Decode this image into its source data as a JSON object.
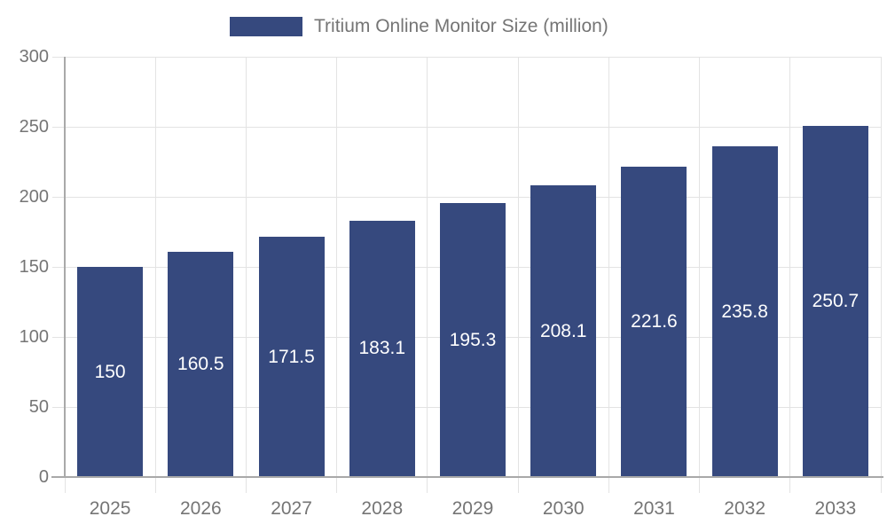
{
  "legend": {
    "label": "Tritium Online Monitor Size (million)"
  },
  "colors": {
    "bar": "#36497E",
    "grid": "#e3e3e3",
    "axis": "#a9a9a9",
    "tick_label": "#757575",
    "value_label": "#ffffff",
    "legend_label": "#757575"
  },
  "chart_data": {
    "type": "bar",
    "title": "Tritium Online Monitor Size (million)",
    "categories": [
      "2025",
      "2026",
      "2027",
      "2028",
      "2029",
      "2030",
      "2031",
      "2032",
      "2033"
    ],
    "series": [
      {
        "name": "Tritium Online Monitor Size (million)",
        "values": [
          150,
          160.5,
          171.5,
          183.1,
          195.3,
          208.1,
          221.6,
          235.8,
          250.7
        ]
      }
    ],
    "value_labels": [
      "150",
      "160.5",
      "171.5",
      "183.1",
      "195.3",
      "208.1",
      "221.6",
      "235.8",
      "250.7"
    ],
    "xlabel": "",
    "ylabel": "",
    "ylim": [
      0,
      300
    ],
    "yticks": [
      0,
      50,
      100,
      150,
      200,
      250,
      300
    ],
    "grid": true,
    "legend_position": "top-center",
    "value_label_position": "inside-center"
  }
}
